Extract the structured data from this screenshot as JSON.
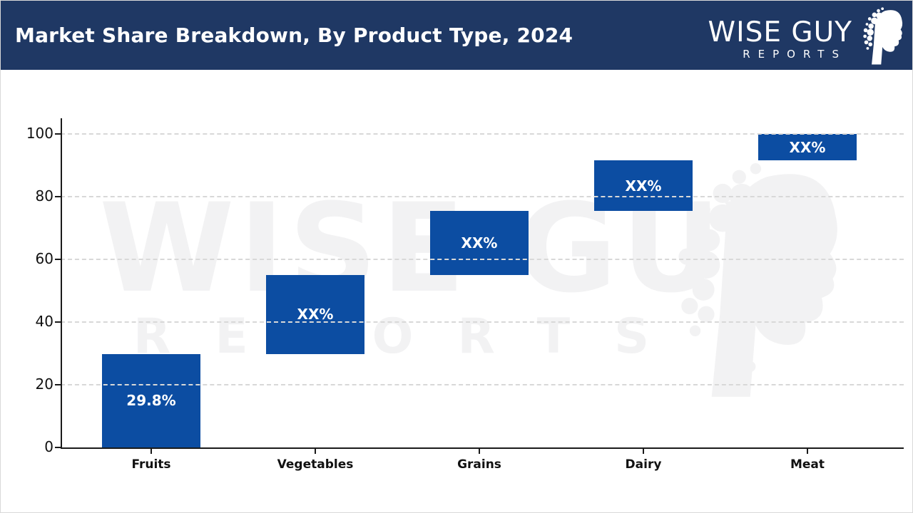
{
  "page": {
    "background": "#ffffff",
    "border_color": "#d9d9d9"
  },
  "header": {
    "title": "Market Share Breakdown, By Product Type, 2024",
    "background": "#1f3864",
    "logo": {
      "line1": "WISE GUY",
      "line2": "REPORTS"
    }
  },
  "watermark": {
    "line1": "WISE GUY",
    "line2": "REPORTS"
  },
  "chart_data": {
    "type": "bar",
    "subtype": "waterfall",
    "title": "Market Share Breakdown, By Product Type, 2024",
    "categories": [
      "Fruits",
      "Vegetables",
      "Grains",
      "Dairy",
      "Meat"
    ],
    "segments": [
      {
        "category": "Fruits",
        "start": 0,
        "end": 29.8,
        "label": "29.8%"
      },
      {
        "category": "Vegetables",
        "start": 29.8,
        "end": 55,
        "label": "XX%"
      },
      {
        "category": "Grains",
        "start": 55,
        "end": 75.5,
        "label": "XX%"
      },
      {
        "category": "Dairy",
        "start": 75.5,
        "end": 91.5,
        "label": "XX%"
      },
      {
        "category": "Meat",
        "start": 91.5,
        "end": 100,
        "label": "XX%"
      }
    ],
    "yticks": [
      0,
      20,
      40,
      60,
      80,
      100
    ],
    "ylim": [
      0,
      105
    ],
    "xlabel": "",
    "ylabel": "",
    "legend": "none",
    "grid": "horizontal-dashed",
    "gridline_color": "#d8d8d8",
    "bar_color": "#0c4da2",
    "bar_label_color": "#ffffff"
  }
}
